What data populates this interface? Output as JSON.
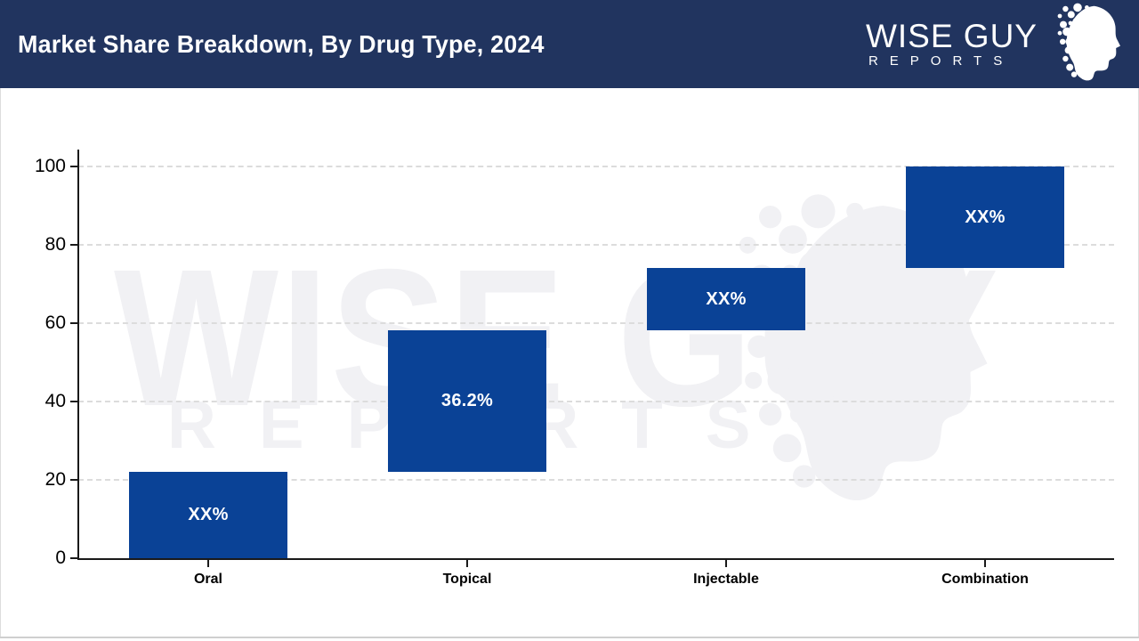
{
  "header": {
    "title": "Market Share Breakdown, By Drug Type, 2024",
    "logo": {
      "line1": "WISE GUY",
      "line2": "REPORTS"
    }
  },
  "watermark": {
    "line1": "WISE GUY",
    "line2": "REPORTS"
  },
  "chart_data": {
    "type": "bar",
    "subtype": "waterfall",
    "title": "Market Share Breakdown, By Drug Type, 2024",
    "categories": [
      "Oral",
      "Topical",
      "Injectable",
      "Combination"
    ],
    "segments": [
      {
        "category": "Oral",
        "start": 0,
        "end": 22,
        "label": "XX%"
      },
      {
        "category": "Topical",
        "start": 22,
        "end": 58.2,
        "label": "36.2%"
      },
      {
        "category": "Injectable",
        "start": 58.2,
        "end": 74,
        "label": "XX%"
      },
      {
        "category": "Combination",
        "start": 74,
        "end": 100,
        "label": "XX%"
      }
    ],
    "yticks": [
      0,
      20,
      40,
      60,
      80,
      100
    ],
    "ylim": [
      0,
      100
    ],
    "xlabel": "",
    "ylabel": "",
    "grid": "horizontal-dashed",
    "legend": "none",
    "colors": {
      "bar": "#0a4296",
      "bar_label": "#ffffff",
      "axis": "#1a1a1a",
      "gridline": "#dcdcdc",
      "header_bg": "#21345f",
      "title_text": "#ffffff",
      "watermark": "#f1f1f4"
    }
  }
}
